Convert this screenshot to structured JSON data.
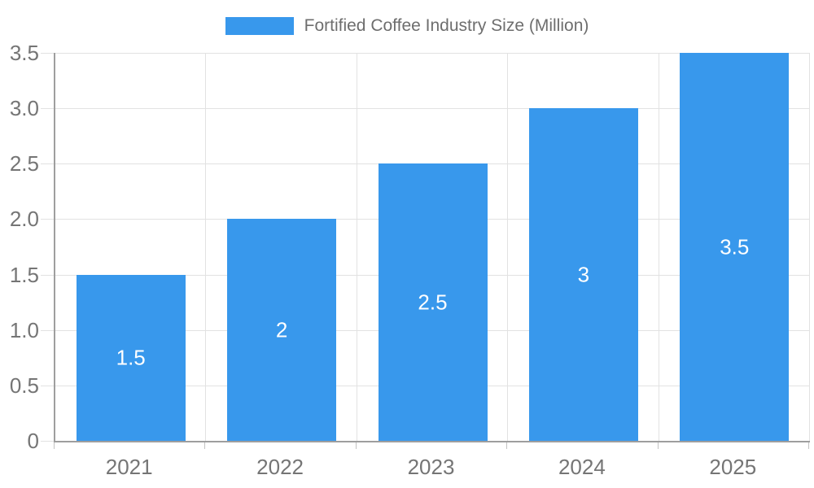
{
  "chart_data": {
    "type": "bar",
    "title": "Fortified Coffee Industry Size (Million)",
    "categories": [
      "2021",
      "2022",
      "2023",
      "2024",
      "2025"
    ],
    "values": [
      1.5,
      2,
      2.5,
      3,
      3.5
    ],
    "bar_labels": [
      "1.5",
      "2",
      "2.5",
      "3",
      "3.5"
    ],
    "y_ticks": [
      {
        "value": 0,
        "label": "0"
      },
      {
        "value": 0.5,
        "label": "0.5"
      },
      {
        "value": 1,
        "label": "1.0"
      },
      {
        "value": 1.5,
        "label": "1.5"
      },
      {
        "value": 2,
        "label": "2.0"
      },
      {
        "value": 2.5,
        "label": "2.5"
      },
      {
        "value": 3,
        "label": "3.0"
      },
      {
        "value": 3.5,
        "label": "3.5"
      }
    ],
    "ylim": [
      0,
      3.5
    ],
    "xlabel": "",
    "ylabel": "",
    "grid": true,
    "legend_position": "top",
    "colors": {
      "bar": "#3898ec",
      "bar_value_text": "#ffffff",
      "axis_text": "#757575",
      "legend_text": "#6e6e6e",
      "grid_line": "#e2e2e2",
      "axis_line": "#9e9e9e",
      "tick_mark": "#c2c2c2",
      "background": "#ffffff"
    }
  }
}
